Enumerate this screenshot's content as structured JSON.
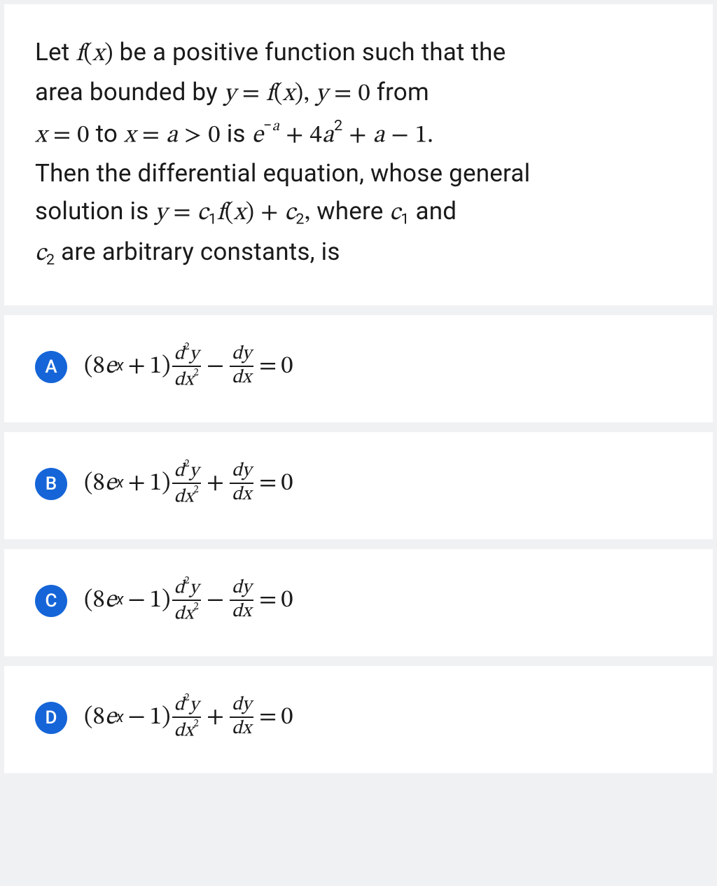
{
  "question": {
    "lines_html": [
      "Let <span class=\"math\">f</span><span class=\"mathup\">(</span><span class=\"math\">x</span><span class=\"mathup\">)</span> be a positive function such that the",
      "area bounded by <span class=\"math\">y</span> <span class=\"mathup\">=</span> <span class=\"math\">f</span><span class=\"mathup\">(</span><span class=\"math\">x</span><span class=\"mathup\">)</span><span class=\"mathup\">,</span> <span class=\"math\">y</span> <span class=\"mathup\">=</span> <span class=\"mathup\">0</span> from",
      "<span class=\"math\">x</span> <span class=\"mathup\">=</span> <span class=\"mathup\">0</span> to <span class=\"math\">x</span> <span class=\"mathup\">=</span> <span class=\"math\">a</span> <span class=\"mathup\">&gt;</span> <span class=\"mathup\">0</span> is <span class=\"math\">e</span><span class=\"sup mathup\">&minus;<span class=\"math\" style=\"font-size:1em\">a</span></span> <span class=\"mathup\">+</span> <span class=\"mathup\">4</span><span class=\"math\">a</span><span class=\"sup mathup\">2</span> <span class=\"mathup\">+</span> <span class=\"math\">a</span> <span class=\"mathup\">&minus;</span> <span class=\"mathup\">1.</span>",
      "Then the differential equation, whose general",
      "solution is <span class=\"math\">y</span> <span class=\"mathup\">=</span> <span class=\"math\">c</span><span class=\"sub mathup\">1</span><span class=\"math\">f</span><span class=\"mathup\">(</span><span class=\"math\">x</span><span class=\"mathup\">)</span> <span class=\"mathup\">+</span> <span class=\"math\">c</span><span class=\"sub mathup\">2</span><span class=\"mathup\">,</span> where <span class=\"math\">c</span><span class=\"sub mathup\">1</span> and",
      "<span class=\"math\">c</span><span class=\"sub mathup\">2</span> are arbitrary constants, is"
    ]
  },
  "options": [
    {
      "label": "A",
      "expr_html": "<span class=\"mathup\">(8</span><span class=\"math\">e</span><span class=\"sup math\">x</span><span class=\"op\">+</span><span class=\"mathup\">1)</span><span class=\"frac\"><span class=\"num\"><span class=\"math\">d</span><span class=\"ssup mathup\">2</span><span class=\"math\">y</span></span><span class=\"bar\"></span><span class=\"den\"><span class=\"math\">dx</span><span class=\"ssup mathup\">2</span></span></span><span class=\"op\">&minus;</span><span class=\"frac\"><span class=\"num\"><span class=\"math\">dy</span></span><span class=\"bar\"></span><span class=\"den\"><span class=\"math\">dx</span></span></span><span class=\"op\">=</span><span class=\"mathup\">0</span>"
    },
    {
      "label": "B",
      "expr_html": "<span class=\"mathup\">(8</span><span class=\"math\">e</span><span class=\"sup math\">x</span><span class=\"op\">+</span><span class=\"mathup\">1)</span><span class=\"frac\"><span class=\"num\"><span class=\"math\">d</span><span class=\"ssup mathup\">2</span><span class=\"math\">y</span></span><span class=\"bar\"></span><span class=\"den\"><span class=\"math\">dx</span><span class=\"ssup mathup\">2</span></span></span><span class=\"op\">+</span><span class=\"frac\"><span class=\"num\"><span class=\"math\">dy</span></span><span class=\"bar\"></span><span class=\"den\"><span class=\"math\">dx</span></span></span><span class=\"op\">=</span><span class=\"mathup\">0</span>"
    },
    {
      "label": "C",
      "expr_html": "<span class=\"mathup\">(8</span><span class=\"math\">e</span><span class=\"sup math\">x</span><span class=\"op\">&minus;</span><span class=\"mathup\">1)</span><span class=\"frac\"><span class=\"num\"><span class=\"math\">d</span><span class=\"ssup mathup\">2</span><span class=\"math\">y</span></span><span class=\"bar\"></span><span class=\"den\"><span class=\"math\">dx</span><span class=\"ssup mathup\">2</span></span></span><span class=\"op\">&minus;</span><span class=\"frac\"><span class=\"num\"><span class=\"math\">dy</span></span><span class=\"bar\"></span><span class=\"den\"><span class=\"math\">dx</span></span></span><span class=\"op\">=</span><span class=\"mathup\">0</span>"
    },
    {
      "label": "D",
      "expr_html": "<span class=\"mathup\">(8</span><span class=\"math\">e</span><span class=\"sup math\">x</span><span class=\"op\">&minus;</span><span class=\"mathup\">1)</span><span class=\"frac\"><span class=\"num\"><span class=\"math\">d</span><span class=\"ssup mathup\">2</span><span class=\"math\">y</span></span><span class=\"bar\"></span><span class=\"den\"><span class=\"math\">dx</span><span class=\"ssup mathup\">2</span></span></span><span class=\"op\">+</span><span class=\"frac\"><span class=\"num\"><span class=\"math\">dy</span></span><span class=\"bar\"></span><span class=\"den\"><span class=\"math\">dx</span></span></span><span class=\"op\">=</span><span class=\"mathup\">0</span>"
    }
  ],
  "colors": {
    "page_bg": "#f0f1f3",
    "card_bg": "#ffffff",
    "text": "#1a1a1a",
    "badge_bg": "#1565d8",
    "badge_text": "#ffffff"
  }
}
